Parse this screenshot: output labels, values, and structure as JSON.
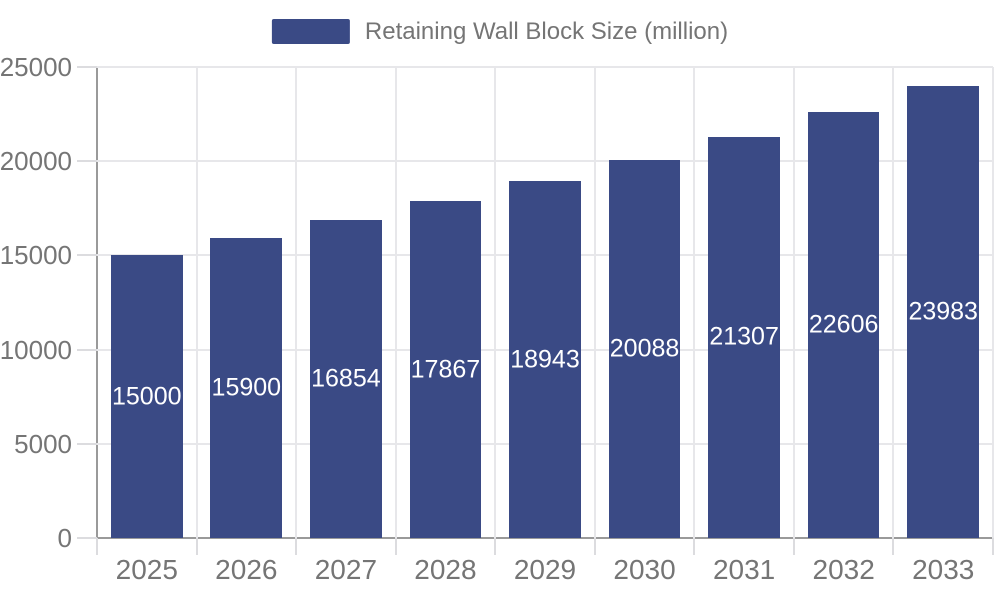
{
  "chart_data": {
    "type": "bar",
    "title": "",
    "legend_label": "Retaining Wall Block Size (million)",
    "legend_position": "top-center",
    "categories": [
      "2025",
      "2026",
      "2027",
      "2028",
      "2029",
      "2030",
      "2031",
      "2032",
      "2033"
    ],
    "values": [
      15000,
      15900,
      16854,
      17867,
      18943,
      20088,
      21307,
      22606,
      23983
    ],
    "xlabel": "",
    "ylabel": "",
    "ylim": [
      0,
      25000
    ],
    "yticks": [
      0,
      5000,
      10000,
      15000,
      20000,
      25000
    ],
    "grid": true,
    "bar_value_labels_shown": true
  },
  "colors": {
    "bar": "#3A4A85",
    "bar_label_text": "#ffffff",
    "grid_line": "#e7e7ea",
    "tick_mark": "#dcdcdf",
    "axis_line": "#9a9a9a",
    "tick_text": "#757575",
    "legend_text": "#757575",
    "background": "#ffffff"
  }
}
